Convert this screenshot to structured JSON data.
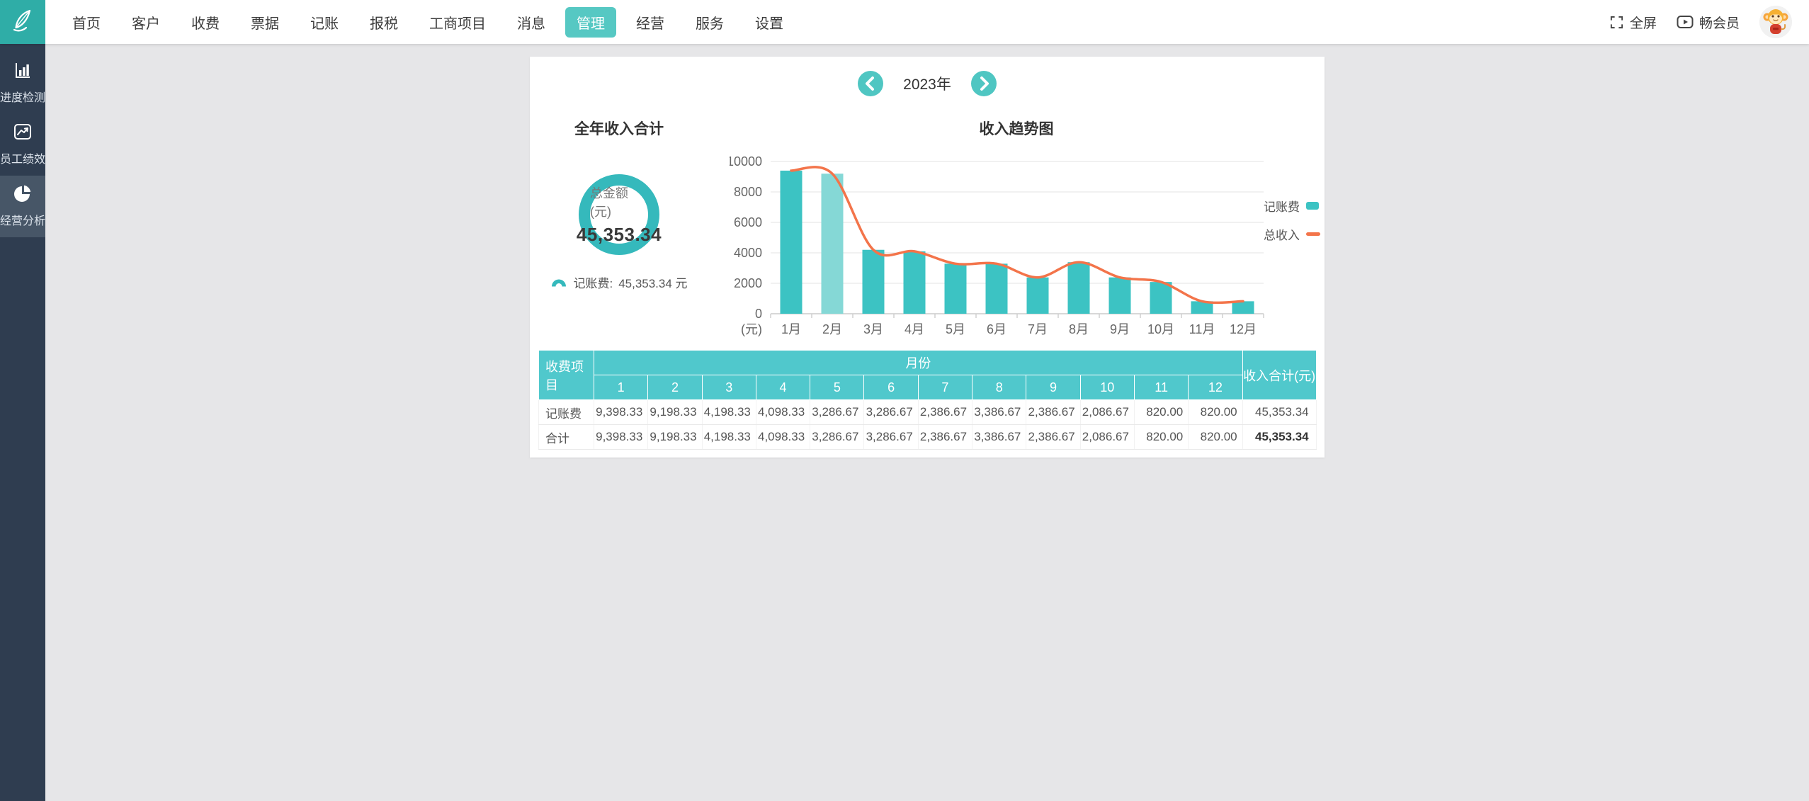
{
  "top_nav": {
    "items": [
      "首页",
      "客户",
      "收费",
      "票据",
      "记账",
      "报税",
      "工商项目",
      "消息",
      "管理",
      "经营",
      "服务",
      "设置"
    ],
    "active_index": 8,
    "fullscreen_label": "全屏",
    "member_label": "畅会员"
  },
  "sidebar": {
    "items": [
      {
        "label": "进度检测",
        "icon": "bar-chart-icon",
        "active": false
      },
      {
        "label": "员工绩效",
        "icon": "line-chart-icon",
        "active": false
      },
      {
        "label": "经营分析",
        "icon": "pie-chart-icon",
        "active": true
      }
    ]
  },
  "year_nav": {
    "year_label": "2023年"
  },
  "summary": {
    "title": "全年收入合计",
    "center_label": "总金额(元)",
    "center_value": "45,353.34",
    "legend_label": "记账费:",
    "legend_value": "45,353.34 元"
  },
  "chart_data": {
    "type": "bar",
    "title": "收入趋势图",
    "categories": [
      "1月",
      "2月",
      "3月",
      "4月",
      "5月",
      "6月",
      "7月",
      "8月",
      "9月",
      "10月",
      "11月",
      "12月"
    ],
    "series": [
      {
        "name": "记账费",
        "type": "bar",
        "color": "#3cc3c3",
        "highlight_color": "#85d8d6",
        "highlight_index": 1,
        "values": [
          9398.33,
          9198.33,
          4198.33,
          4098.33,
          3286.67,
          3286.67,
          2386.67,
          3386.67,
          2386.67,
          2086.67,
          820.0,
          820.0
        ]
      },
      {
        "name": "总收入",
        "type": "line",
        "color": "#f3744a",
        "values": [
          9398.33,
          9198.33,
          4198.33,
          4098.33,
          3286.67,
          3286.67,
          2386.67,
          3386.67,
          2386.67,
          2086.67,
          820.0,
          820.0
        ]
      }
    ],
    "xlabel": "",
    "ylabel": "(元)",
    "ylim": [
      0,
      10000
    ],
    "yticks": [
      0,
      2000,
      4000,
      6000,
      8000,
      10000
    ],
    "grid": true,
    "legend_position": "right"
  },
  "table": {
    "item_col_header": "收费项目",
    "month_group_header": "月份",
    "month_headers": [
      "1",
      "2",
      "3",
      "4",
      "5",
      "6",
      "7",
      "8",
      "9",
      "10",
      "11",
      "12"
    ],
    "total_col_header": "收入合计(元)",
    "rows": [
      {
        "label": "记账费",
        "values": [
          "9,398.33",
          "9,198.33",
          "4,198.33",
          "4,098.33",
          "3,286.67",
          "3,286.67",
          "2,386.67",
          "3,386.67",
          "2,386.67",
          "2,086.67",
          "820.00",
          "820.00"
        ],
        "total": "45,353.34",
        "total_bold": false
      },
      {
        "label": "合计",
        "values": [
          "9,398.33",
          "9,198.33",
          "4,198.33",
          "4,098.33",
          "3,286.67",
          "3,286.67",
          "2,386.67",
          "3,386.67",
          "2,386.67",
          "2,086.67",
          "820.00",
          "820.00"
        ],
        "total": "45,353.34",
        "total_bold": true
      }
    ]
  },
  "colors": {
    "primary_teal": "#3cc3c3",
    "light_teal": "#85d8d6",
    "orange_line": "#f3744a",
    "donut_ring": "#35b9bc",
    "table_header": "#50c8cc",
    "nav_active": "#56c8c3",
    "logo_bg": "#2fada7",
    "sidebar_bg": "#2f3d50",
    "sidebar_active": "#475667"
  }
}
